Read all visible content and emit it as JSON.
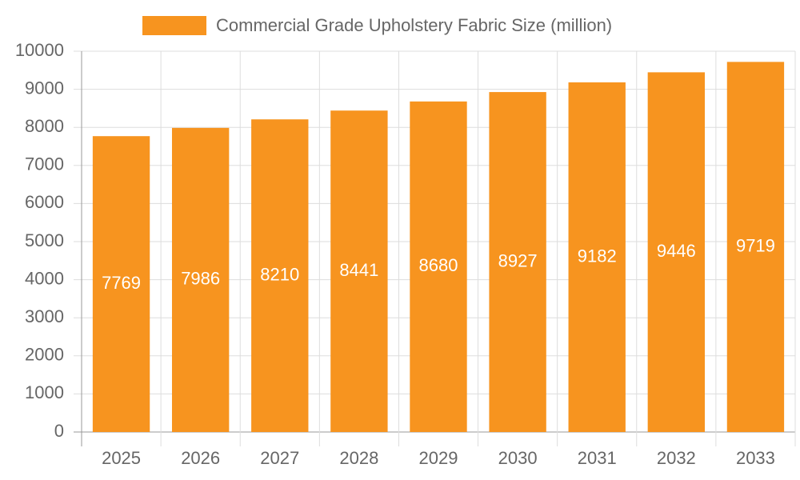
{
  "chart_data": {
    "type": "bar",
    "categories": [
      "2025",
      "2026",
      "2027",
      "2028",
      "2029",
      "2030",
      "2031",
      "2032",
      "2033"
    ],
    "series": [
      {
        "name": "Commercial Grade Upholstery Fabric Size (million)",
        "color": "#f7941f",
        "values": [
          7769,
          7986,
          8210,
          8441,
          8680,
          8927,
          9182,
          9446,
          9719
        ]
      }
    ],
    "ylim": [
      0,
      10000
    ],
    "yticks": [
      0,
      1000,
      2000,
      3000,
      4000,
      5000,
      6000,
      7000,
      8000,
      9000,
      10000
    ],
    "grid": true
  }
}
